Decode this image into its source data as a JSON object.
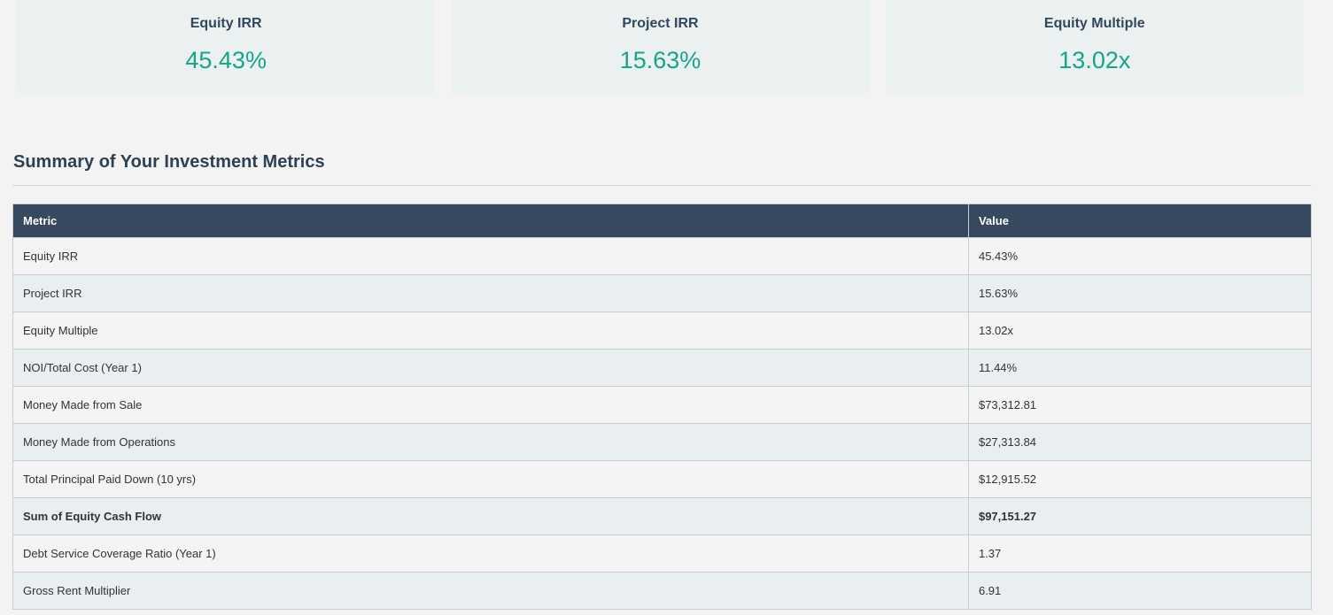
{
  "colors": {
    "page-bg": "#f4f3f3",
    "card-bg": "#ebf0f0",
    "accent": "#16a48a",
    "navy": "#33475c",
    "heading": "#2d4154",
    "th-bg": "#36495e",
    "row-light": "#f4f4f4",
    "row-stripe": "#e9eef0",
    "tbl-border": "#c9ced3",
    "cell-text": "#333333"
  },
  "cards": [
    {
      "label": "Equity IRR",
      "value": "45.43%"
    },
    {
      "label": "Project IRR",
      "value": "15.63%"
    },
    {
      "label": "Equity Multiple",
      "value": "13.02x"
    }
  ],
  "section": {
    "title": "Summary of Your Investment Metrics"
  },
  "table": {
    "columns": [
      "Metric",
      "Value"
    ],
    "rows": [
      {
        "metric": "Equity IRR",
        "value": "45.43%",
        "bold": false
      },
      {
        "metric": "Project IRR",
        "value": "15.63%",
        "bold": false
      },
      {
        "metric": "Equity Multiple",
        "value": "13.02x",
        "bold": false
      },
      {
        "metric": "NOI/Total Cost (Year 1)",
        "value": "11.44%",
        "bold": false
      },
      {
        "metric": "Money Made from Sale",
        "value": "$73,312.81",
        "bold": false
      },
      {
        "metric": "Money Made from Operations",
        "value": "$27,313.84",
        "bold": false
      },
      {
        "metric": "Total Principal Paid Down (10 yrs)",
        "value": "$12,915.52",
        "bold": false
      },
      {
        "metric": "Sum of Equity Cash Flow",
        "value": "$97,151.27",
        "bold": true
      },
      {
        "metric": "Debt Service Coverage Ratio (Year 1)",
        "value": "1.37",
        "bold": false
      },
      {
        "metric": "Gross Rent Multiplier",
        "value": "6.91",
        "bold": false
      }
    ]
  }
}
